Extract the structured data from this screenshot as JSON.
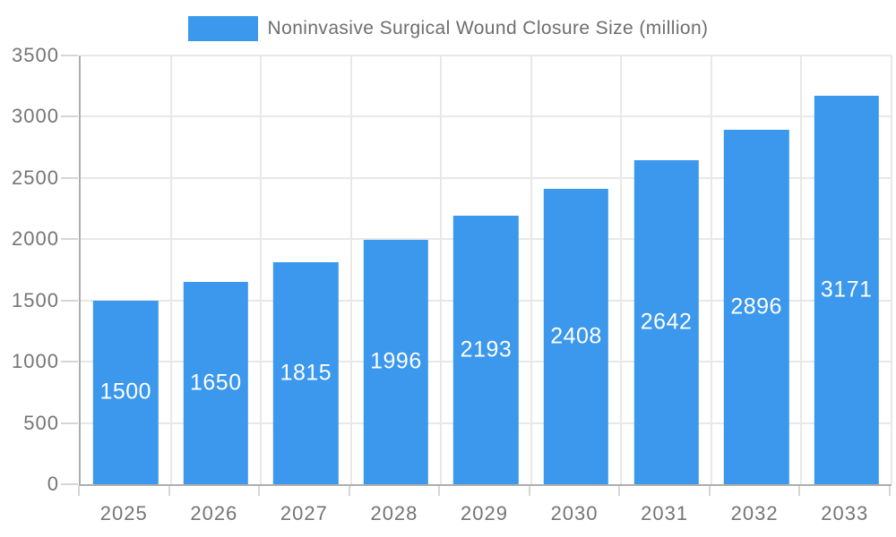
{
  "legend": {
    "items": [
      {
        "label": "Noninvasive Surgical Wound Closure Size (million)",
        "color": "#3b98ec"
      }
    ]
  },
  "chart_data": {
    "type": "bar",
    "title": "Noninvasive Surgical Wound Closure Size (million)",
    "categories": [
      "2025",
      "2026",
      "2027",
      "2028",
      "2029",
      "2030",
      "2031",
      "2032",
      "2033"
    ],
    "series": [
      {
        "name": "Noninvasive Surgical Wound Closure Size (million)",
        "color": "#3b98ec",
        "values": [
          1500,
          1650,
          1815,
          1996,
          2193,
          2408,
          2642,
          2896,
          3171
        ]
      }
    ],
    "xlabel": "",
    "ylabel": "",
    "ylim": [
      0,
      3500
    ],
    "yticks": [
      0,
      500,
      1000,
      1500,
      2000,
      2500,
      3000,
      3500
    ],
    "grid": true,
    "legend_position": "top",
    "bar_labels_visible": true,
    "bar_label_color": "#ffffff"
  },
  "style": {
    "bar_color": "#3b98ec",
    "grid_color": "#e8e8e8",
    "axis_color": "#adadad",
    "tick_color": "#d6d6d6",
    "axis_text_color": "#757575",
    "legend_text_color": "#6e6e6e",
    "background": "#ffffff"
  }
}
